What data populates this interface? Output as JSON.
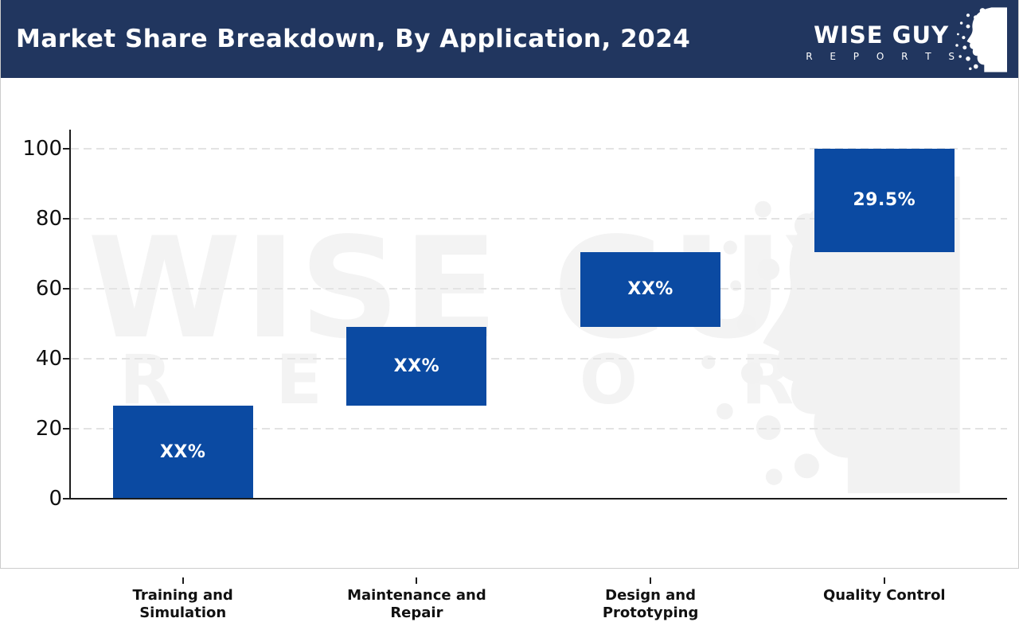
{
  "page": {
    "background": "#ffffff",
    "frame_border": "#cccccc"
  },
  "header": {
    "title": "Market Share Breakdown, By Application, 2024",
    "background": "#21365f",
    "logo": {
      "line1": "WISE GUY",
      "line2": "R E P O R T S"
    }
  },
  "watermark": {
    "line1": "WISE GUY",
    "line2": "R E P O R T S"
  },
  "chart_data": {
    "type": "bar",
    "subtype": "floating-waterfall",
    "title": "Market Share Breakdown, By Application, 2024",
    "categories": [
      "Training and Simulation",
      "Maintenance and Repair",
      "Design and Prototyping",
      "Quality Control"
    ],
    "category_lines": [
      [
        "Training and",
        "Simulation"
      ],
      [
        "Maintenance and",
        "Repair"
      ],
      [
        "Design and",
        "Prototyping"
      ],
      [
        "Quality Control"
      ]
    ],
    "segments": [
      {
        "category": "Training and Simulation",
        "start": 0,
        "end": 26.5,
        "value": 26.5,
        "label": "XX%"
      },
      {
        "category": "Maintenance and Repair",
        "start": 26.5,
        "end": 49,
        "value": 22.5,
        "label": "XX%"
      },
      {
        "category": "Design and Prototyping",
        "start": 49,
        "end": 70.5,
        "value": 21.5,
        "label": "XX%"
      },
      {
        "category": "Quality Control",
        "start": 70.5,
        "end": 100,
        "value": 29.5,
        "label": "29.5%"
      }
    ],
    "ylim": [
      0,
      100
    ],
    "yticks": [
      0,
      20,
      40,
      60,
      80,
      100
    ],
    "grid": {
      "horizontal": true,
      "style": "dashed",
      "color": "#e3e3e3"
    },
    "legend": null,
    "bar_color": "#0b4aa2",
    "bar_label_color": "#ffffff"
  }
}
